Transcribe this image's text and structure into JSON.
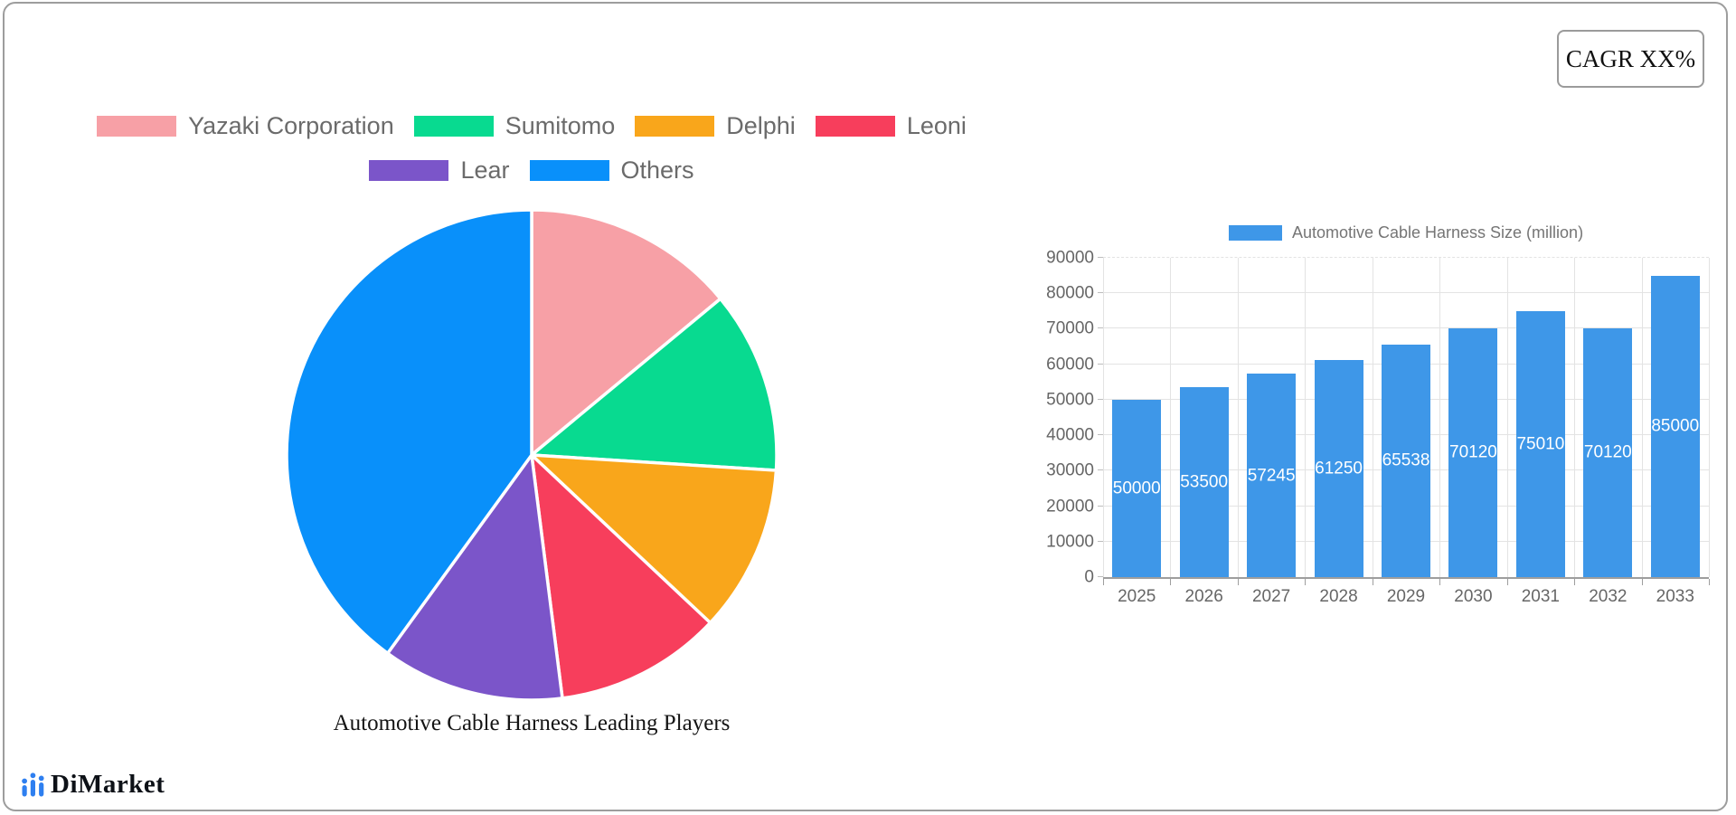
{
  "cagr_box": {
    "label": "CAGR XX%"
  },
  "brand": {
    "name": "DiMarket",
    "icon_color": "#2e7ff0"
  },
  "chart_data": [
    {
      "type": "pie",
      "title": "Automotive Cable Harness Leading Players",
      "legend_position": "top",
      "legend_row_break": 4,
      "direction": "clockwise",
      "start_angle_deg": 0,
      "series": [
        {
          "label": "Yazaki Corporation",
          "value": 14,
          "color": "#f7a0a6"
        },
        {
          "label": "Sumitomo",
          "value": 12,
          "color": "#08da90"
        },
        {
          "label": "Delphi",
          "value": 11,
          "color": "#f9a61b"
        },
        {
          "label": "Leoni",
          "value": 11,
          "color": "#f73e5c"
        },
        {
          "label": "Lear",
          "value": 12,
          "color": "#7b55c9"
        },
        {
          "label": "Others",
          "value": 40,
          "color": "#0990fa"
        }
      ]
    },
    {
      "type": "bar",
      "legend": "Automotive Cable Harness Size (million)",
      "legend_position": "top",
      "categories": [
        "2025",
        "2026",
        "2027",
        "2028",
        "2029",
        "2030",
        "2031",
        "2032",
        "2033"
      ],
      "values": [
        50000,
        53500,
        57245,
        61250,
        65538,
        70120,
        75010,
        70120,
        85000
      ],
      "bar_color": "#3e97e8",
      "value_label_color": "#ffffff",
      "xlabel": "",
      "ylabel": "",
      "ylim": [
        0,
        90000
      ],
      "yticks": [
        0,
        10000,
        20000,
        30000,
        40000,
        50000,
        60000,
        70000,
        80000,
        90000
      ],
      "grid": true
    }
  ]
}
